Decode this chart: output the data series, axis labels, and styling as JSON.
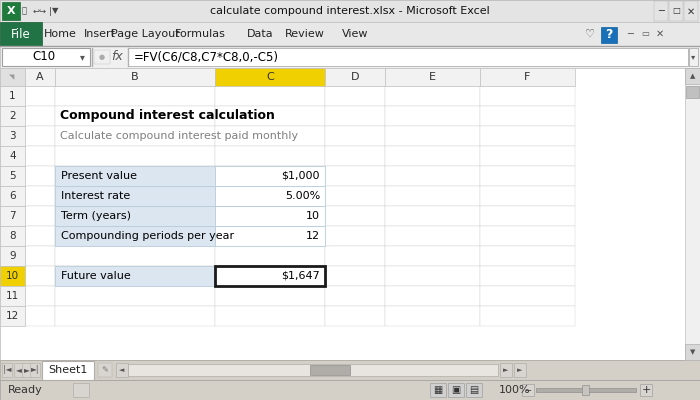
{
  "title_bar_text": "calculate compound interest.xlsx - Microsoft Excel",
  "formula_bar_cell": "C10",
  "formula_bar_formula": "=FV(C6/C8,C7*C8,0,-C5)",
  "menu_items": [
    "File",
    "Home",
    "Insert",
    "Page Layout",
    "Formulas",
    "Data",
    "Review",
    "View"
  ],
  "col_headers": [
    "A",
    "B",
    "C",
    "D",
    "E",
    "F"
  ],
  "row_headers": [
    "1",
    "2",
    "3",
    "4",
    "5",
    "6",
    "7",
    "8",
    "9",
    "10",
    "11",
    "12"
  ],
  "cell_title": "Compound interest calculation",
  "cell_subtitle": "Calculate compound interest paid monthly",
  "table_labels": [
    "Present value",
    "Interest rate",
    "Term (years)",
    "Compounding periods per year"
  ],
  "table_values": [
    "$1,000",
    "5.00%",
    "10",
    "12"
  ],
  "future_label": "Future value",
  "future_value": "$1,647",
  "bg_color": "#d4d0c8",
  "sheet_bg": "#ffffff",
  "title_bar_bg": "#e8e8e8",
  "ribbon_bg": "#dce6f1",
  "file_btn_color": "#217346",
  "col_header_bg": "#f2f2f2",
  "row_header_bg": "#f2f2f2",
  "corner_header_bg": "#e0e0e0",
  "selected_col_header_bg": "#f0d000",
  "selected_row_header_bg": "#f0d000",
  "table_label_bg": "#dce6f1",
  "table_value_bg": "#ffffff",
  "grid_color": "#c8c8c8",
  "subtitle_color": "#808080",
  "cell_border_selected": "#1f1f1f",
  "title_bg": "#e4e4e4",
  "scrollbar_bg": "#f0f0f0",
  "scrollbar_btn": "#c8c8c8",
  "status_bar_bg": "#d4d0c8",
  "tab_area_bg": "#d4d0c8",
  "sheet_tab_bg": "#ffffff",
  "formula_area_bg": "#f0f0f0",
  "ribbon_border": "#a0a0a0"
}
